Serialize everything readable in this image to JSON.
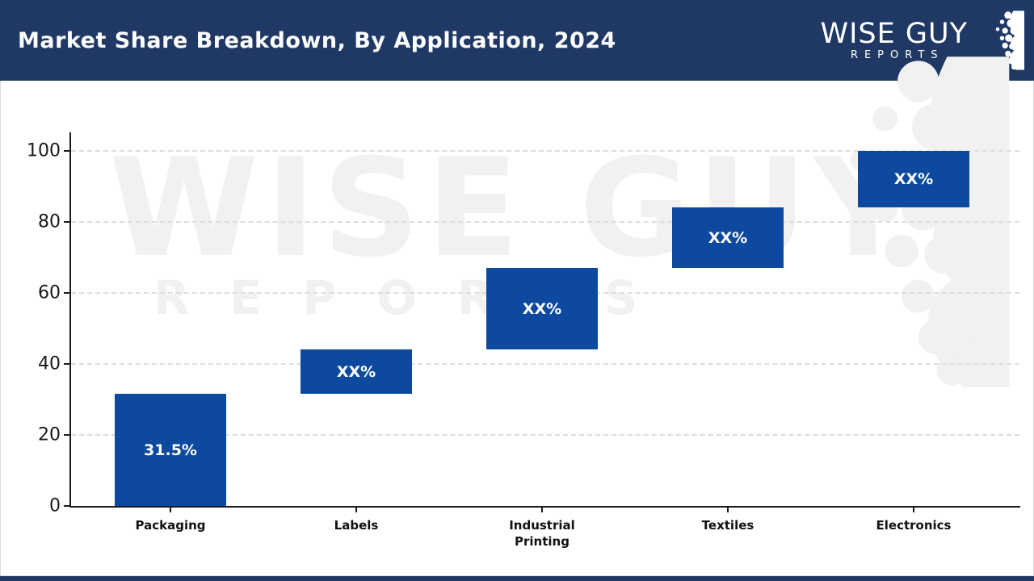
{
  "header": {
    "title": "Market Share Breakdown, By Application, 2024",
    "logo": {
      "line1": "WISE GUY",
      "line2": "REPORTS"
    }
  },
  "watermark": {
    "line1": "WISE GUY",
    "line2": "REPORTS"
  },
  "chart_data": {
    "type": "bar",
    "subtype": "waterfall",
    "title": "Market Share Breakdown, By Application, 2024",
    "categories": [
      "Packaging",
      "Labels",
      "Industrial Printing",
      "Textiles",
      "Electronics"
    ],
    "segments": [
      {
        "category": "Packaging",
        "start": 0,
        "end": 31.5,
        "label": "31.5%"
      },
      {
        "category": "Labels",
        "start": 31.5,
        "end": 44,
        "label": "XX%"
      },
      {
        "category": "Industrial Printing",
        "start": 44,
        "end": 67,
        "label": "XX%"
      },
      {
        "category": "Textiles",
        "start": 67,
        "end": 84,
        "label": "XX%"
      },
      {
        "category": "Electronics",
        "start": 84,
        "end": 100,
        "label": "XX%"
      }
    ],
    "yticks": [
      0,
      20,
      40,
      60,
      80,
      100
    ],
    "ylim": [
      0,
      105
    ],
    "xlabel": "",
    "ylabel": "",
    "grid": "horizontal-dashed",
    "legend": "none",
    "bar_color": "#0d4a9f",
    "bar_label_color": "#ffffff"
  },
  "colors": {
    "header_bg": "#1f3864",
    "footer_bg": "#1f3864",
    "bar": "#0d4a9f",
    "gridline": "#dedede",
    "axis": "#1a1a1a",
    "watermark": "#f1f1f1"
  }
}
